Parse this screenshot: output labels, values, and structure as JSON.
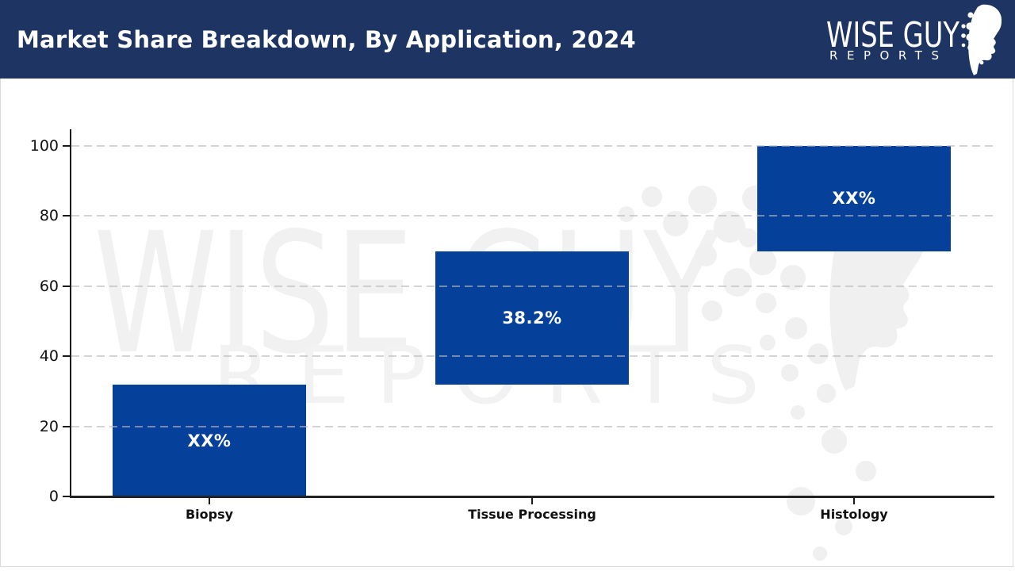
{
  "header": {
    "title": "Market Share Breakdown, By Application, 2024",
    "logo": {
      "name_line": "WISE GUY",
      "sub_line": "REPORTS"
    }
  },
  "watermark": {
    "name_line": "WISE GUY",
    "sub_line": "R E P O R T S"
  },
  "chart_data": {
    "type": "bar",
    "subtype": "waterfall-floating-segments",
    "title": "Market Share Breakdown, By Application, 2024",
    "categories": [
      "Biopsy",
      "Tissue Processing",
      "Histology"
    ],
    "series": [
      {
        "name": "Market share (%)",
        "segments": [
          {
            "category": "Biopsy",
            "start": 0,
            "end": 31.8,
            "label": "XX%"
          },
          {
            "category": "Tissue Processing",
            "start": 31.8,
            "end": 70,
            "label": "38.2%"
          },
          {
            "category": "Histology",
            "start": 70,
            "end": 100,
            "label": "XX%"
          }
        ]
      }
    ],
    "xlabel": "",
    "ylabel": "",
    "ylim": [
      0,
      100
    ],
    "yticks": [
      0,
      20,
      40,
      60,
      80,
      100
    ],
    "grid": {
      "horizontal": true,
      "style": "dashed",
      "drawn_over_bars": true
    },
    "legend": "none",
    "colors": {
      "bar": "#05419b",
      "bar_label": "#ffffff",
      "axis": "#1a1a1a",
      "grid": "#d9d9d9",
      "header_bg": "#1e3563",
      "watermark": "#f1f1f1"
    }
  }
}
